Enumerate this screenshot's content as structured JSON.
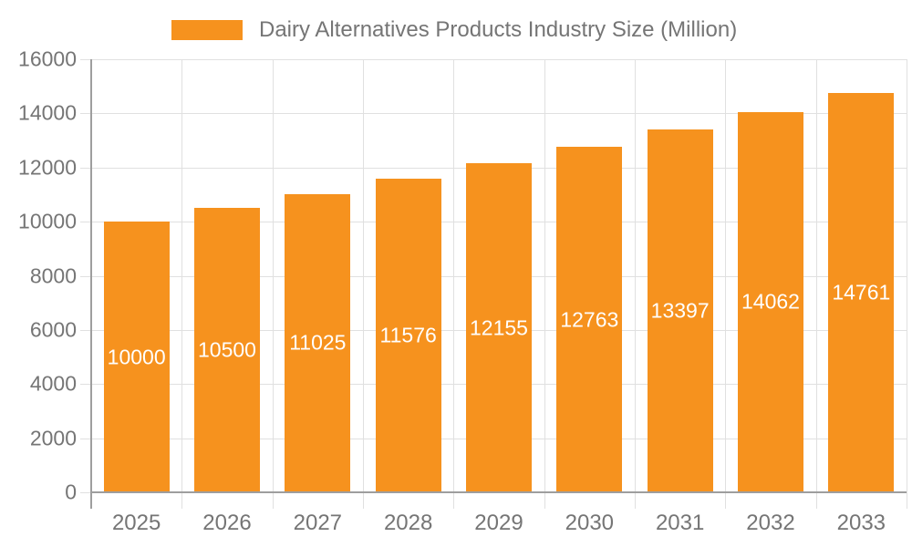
{
  "chart_data": {
    "type": "bar",
    "title": "Dairy Alternatives Products Industry Size (Million)",
    "categories": [
      "2025",
      "2026",
      "2027",
      "2028",
      "2029",
      "2030",
      "2031",
      "2032",
      "2033"
    ],
    "series": [
      {
        "name": "Dairy Alternatives Products Industry Size (Million)",
        "values": [
          10000,
          10500,
          11025,
          11576,
          12155,
          12763,
          13397,
          14062,
          14761
        ]
      }
    ],
    "bar_value_labels": [
      "10000",
      "10500",
      "11025",
      "11576",
      "12155",
      "12763",
      "13397",
      "14062",
      "14761"
    ],
    "xlabel": "",
    "ylabel": "",
    "ylim": [
      0,
      16000
    ],
    "ytick_step": 2000,
    "yticks": [
      0,
      2000,
      4000,
      6000,
      8000,
      10000,
      12000,
      14000,
      16000
    ],
    "grid": true,
    "legend_position": "top",
    "colors": {
      "bar": "#F6921E",
      "bar_label": "#FFFFFF",
      "axis_text": "#757575",
      "axis_line": "#9E9E9E",
      "gridline": "#E0E0E0",
      "background": "#FFFFFF"
    }
  }
}
